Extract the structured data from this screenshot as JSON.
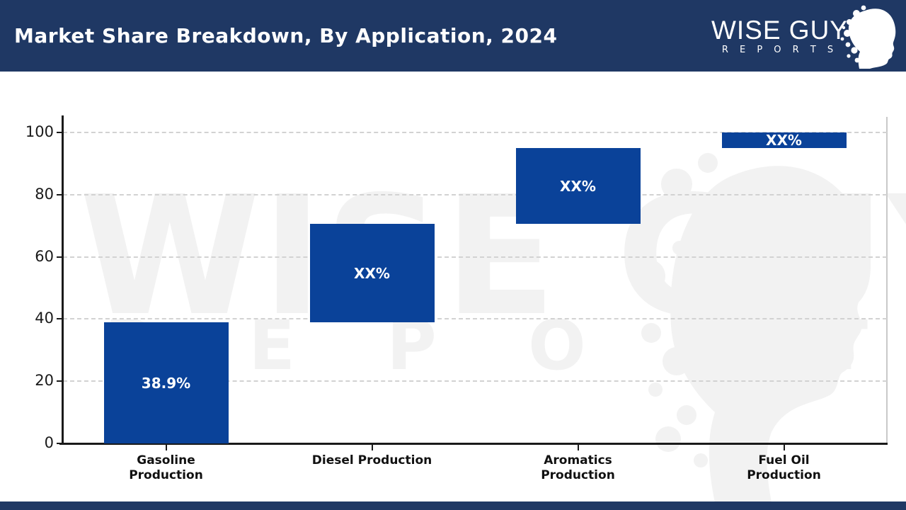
{
  "header": {
    "title": "Market Share Breakdown, By Application, 2024"
  },
  "logo": {
    "title": "WISE GUY",
    "subtitle": "R E P O R T S"
  },
  "watermark": {
    "line1": "WISE GUY",
    "line2": "R E P O R T S"
  },
  "chart_data": {
    "type": "bar",
    "subtype": "waterfall",
    "title": "Market Share Breakdown, By Application, 2024",
    "xlabel": "",
    "ylabel": "",
    "categories": [
      [
        "Gasoline",
        "Production"
      ],
      [
        "Diesel Production"
      ],
      [
        "Aromatics",
        "Production"
      ],
      [
        "Fuel Oil",
        "Production"
      ]
    ],
    "segments": [
      {
        "category": "Gasoline Production",
        "start": 0,
        "end": 38.9,
        "label": "38.9%"
      },
      {
        "category": "Diesel Production",
        "start": 38.9,
        "end": 70.6,
        "label": "XX%"
      },
      {
        "category": "Aromatics Production",
        "start": 70.6,
        "end": 94.9,
        "label": "XX%"
      },
      {
        "category": "Fuel Oil Production",
        "start": 94.9,
        "end": 100,
        "label": "XX%"
      }
    ],
    "yticks": [
      0,
      20,
      40,
      60,
      80,
      100
    ],
    "ylim": [
      0,
      105
    ],
    "grid": "horizontal-dashed",
    "legend": "none",
    "bar_color": "#0a4299",
    "bar_label_color": "#ffffff",
    "colors": {
      "header_bg": "#1f3864",
      "footer_bg": "#1f3864",
      "axis": "#1a1a1a",
      "grid": "#d2d2d2",
      "watermark": "#f2f2f2"
    }
  }
}
